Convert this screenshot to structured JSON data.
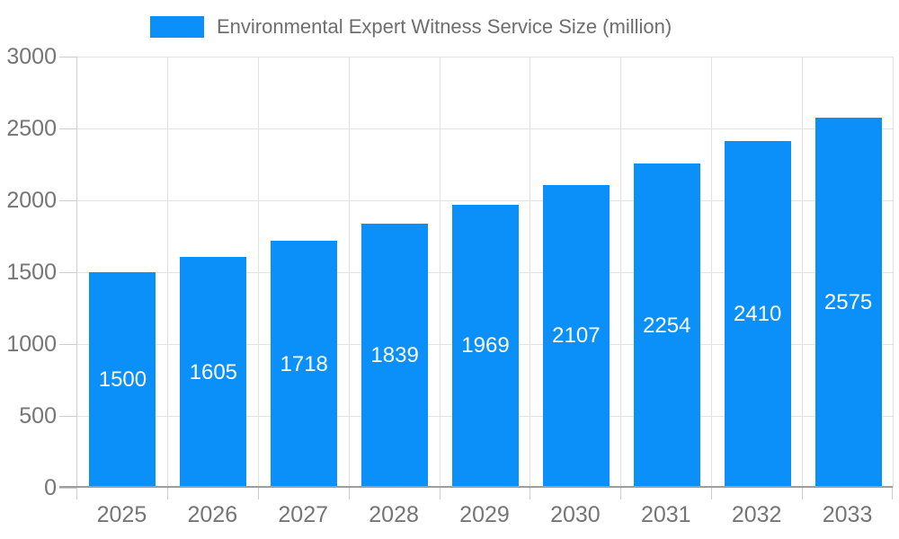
{
  "legend": {
    "label": "Environmental Expert Witness Service Size (million)",
    "swatch_color": "#0a90f8"
  },
  "chart_data": {
    "type": "bar",
    "title": "Environmental Expert Witness Service Size (million)",
    "categories": [
      "2025",
      "2026",
      "2027",
      "2028",
      "2029",
      "2030",
      "2031",
      "2032",
      "2033"
    ],
    "values": [
      1500,
      1605,
      1718,
      1839,
      1969,
      2107,
      2254,
      2410,
      2575
    ],
    "xlabel": "",
    "ylabel": "",
    "ylim": [
      0,
      3000
    ],
    "ytick_interval": 500,
    "ytick_labels": [
      "0",
      "500",
      "1000",
      "1500",
      "2000",
      "2500",
      "3000"
    ],
    "grid": true,
    "legend_position": "top",
    "bar_color": "#0a90f8",
    "value_label_color": "#ffffff"
  },
  "colors": {
    "bar": "#0a90f8",
    "gridline": "#e2e2e2",
    "axis_line": "#9e9e9e",
    "tick_line": "#cccccc",
    "label_text": "#757575",
    "legend_text": "#6e6e6e",
    "background": "#ffffff"
  }
}
